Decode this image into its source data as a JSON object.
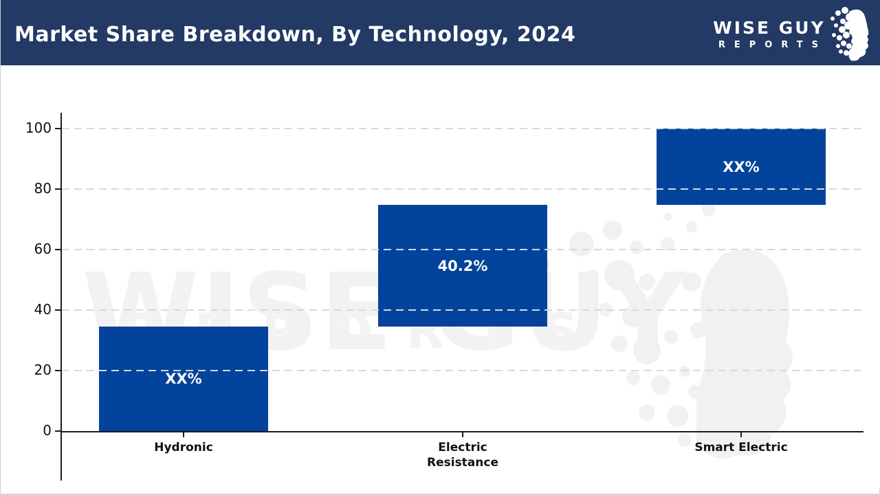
{
  "header": {
    "title": "Market Share Breakdown, By Technology, 2024",
    "logo": {
      "wordmark": "WISE GUY",
      "subtitle": "REPORTS",
      "icon": "dotted-face-profile-icon"
    }
  },
  "watermark": {
    "wordmark": "WISE GUY",
    "subtitle": "REPORTS"
  },
  "chart_data": {
    "type": "bar",
    "subtype": "waterfall",
    "title": "Market Share Breakdown, By Technology, 2024",
    "categories": [
      "Hydronic",
      "Electric Resistance",
      "Smart Electric"
    ],
    "categories_display": [
      "Hydronic",
      "Electric\nResistance",
      "Smart Electric"
    ],
    "series": [
      {
        "name": "Hydronic",
        "start": 0,
        "end": 34.5,
        "value": 34.5,
        "value_label": "XX%"
      },
      {
        "name": "Electric Resistance",
        "start": 34.5,
        "end": 74.7,
        "value": 40.2,
        "value_label": "40.2%"
      },
      {
        "name": "Smart Electric",
        "start": 74.7,
        "end": 100,
        "value": 25.3,
        "value_label": "XX%"
      }
    ],
    "y_ticks": [
      0,
      20,
      40,
      60,
      80,
      100
    ],
    "ylim": [
      0,
      105
    ],
    "xlabel": "",
    "ylabel": "",
    "grid": "horizontal-dashed",
    "legend": "none",
    "bar_color": "#03439b",
    "value_label_color": "#ffffff"
  },
  "colors": {
    "header_bg": "#223a64",
    "bar": "#03439b",
    "axis": "#1a1a1a",
    "gridline": "#d9d9d9",
    "watermark": "#f2f2f2",
    "title_text": "#ffffff"
  }
}
